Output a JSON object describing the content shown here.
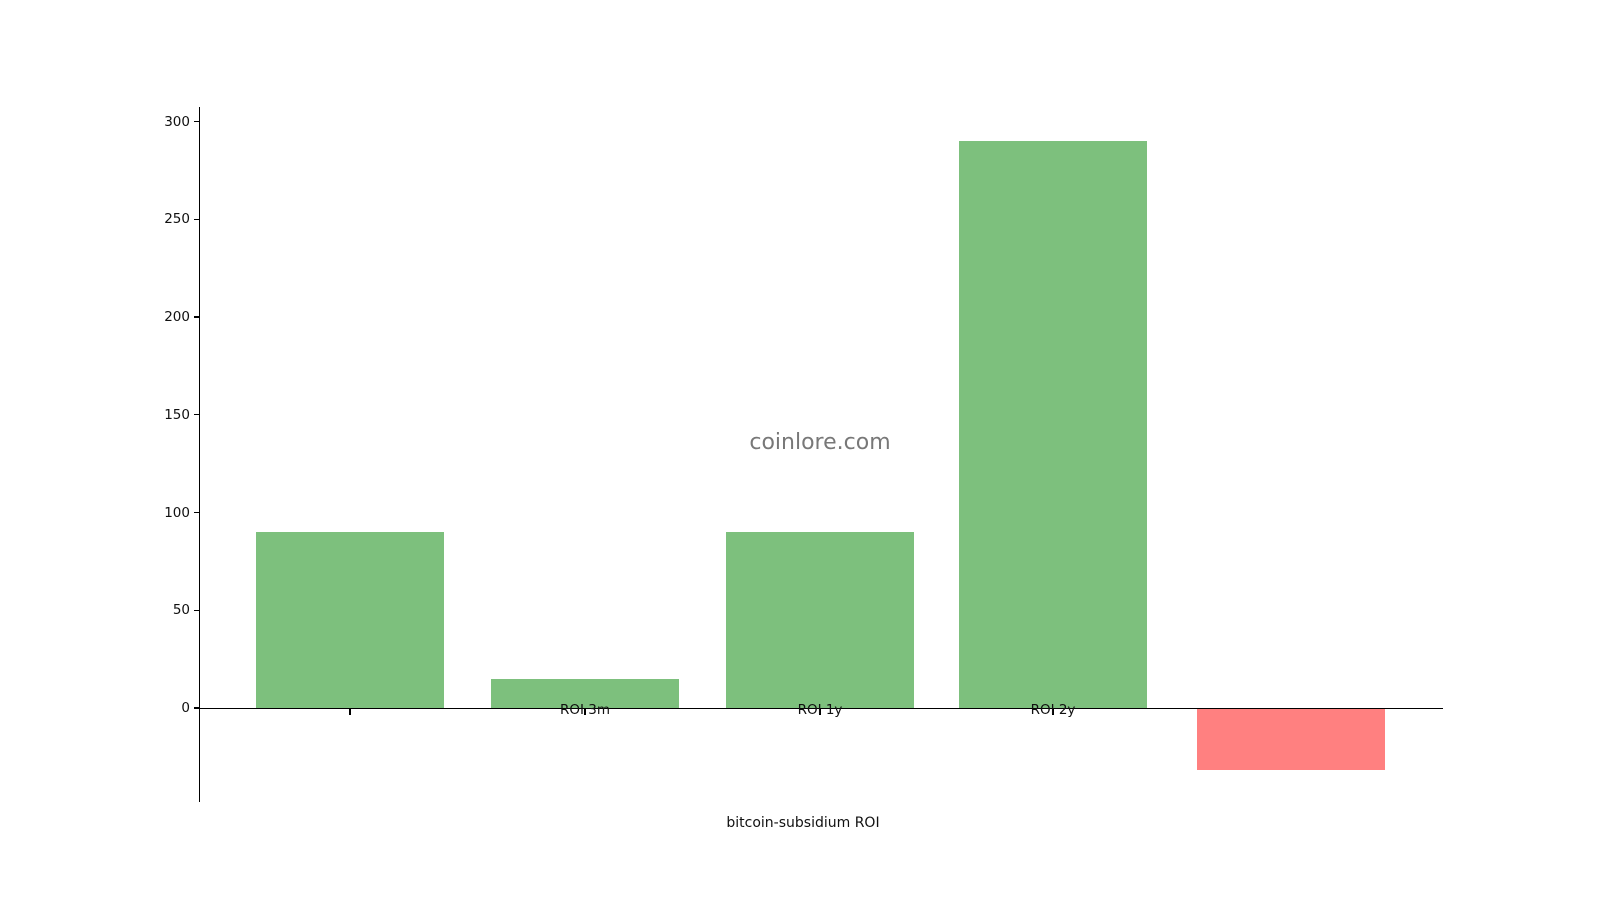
{
  "page": {
    "background": "#ffffff"
  },
  "watermark": {
    "text": "coinlore.com",
    "color": "#787878"
  },
  "chart_data": {
    "type": "bar",
    "title": "",
    "xlabel": "bitcoin-subsidium ROI",
    "ylabel": "",
    "categories": [
      "",
      "ROI 3m",
      "ROI 1y",
      "ROI 2y",
      ""
    ],
    "values": [
      90,
      15,
      90,
      290,
      -31
    ],
    "bar_colors": [
      "#7dc07d",
      "#7dc07d",
      "#7dc07d",
      "#7dc07d",
      "#ff8080"
    ],
    "positive_color": "#7dc07d",
    "negative_color": "#ff8080",
    "yticks": [
      0,
      50,
      100,
      150,
      200,
      250,
      300
    ],
    "ylim": [
      -47,
      306
    ],
    "grid": false,
    "legend_position": "none",
    "xtick_visible": [
      true,
      true,
      true,
      true,
      false
    ],
    "watermark": "coinlore.com"
  }
}
